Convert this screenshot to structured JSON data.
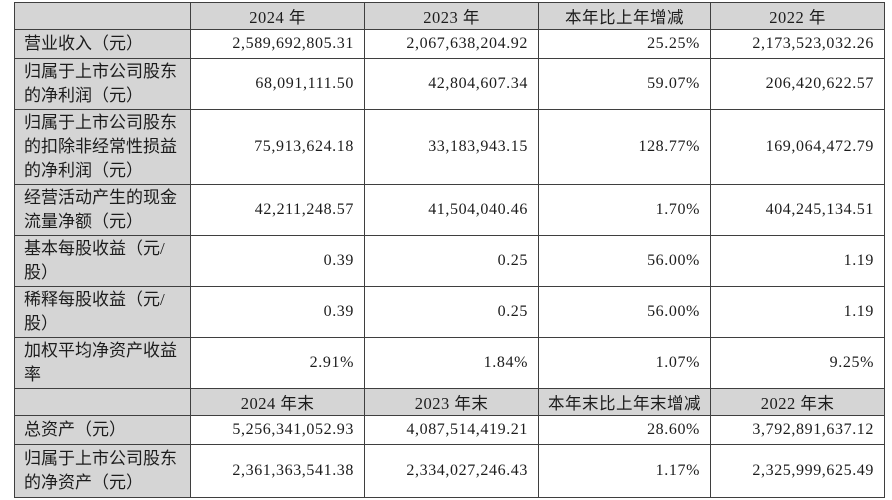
{
  "colors": {
    "header_bg": "#d5d5d5",
    "label_bg": "#d5d5d5",
    "cell_bg": "#ffffff",
    "border": "#3f3f3f",
    "text": "#1c1c1c"
  },
  "table": {
    "annual_header": {
      "empty": "",
      "cols": [
        "2024 年",
        "2023 年",
        "本年比上年增减",
        "2022 年"
      ]
    },
    "annual_rows": [
      {
        "label": "营业收入（元）",
        "values": [
          "2,589,692,805.31",
          "2,067,638,204.92",
          "25.25%",
          "2,173,523,032.26"
        ]
      },
      {
        "label": "归属于上市公司股东\n的净利润（元）",
        "values": [
          "68,091,111.50",
          "42,804,607.34",
          "59.07%",
          "206,420,622.57"
        ]
      },
      {
        "label": "归属于上市公司股东\n的扣除非经常性损益\n的净利润（元）",
        "values": [
          "75,913,624.18",
          "33,183,943.15",
          "128.77%",
          "169,064,472.79"
        ]
      },
      {
        "label": "经营活动产生的现金\n流量净额（元）",
        "values": [
          "42,211,248.57",
          "41,504,040.46",
          "1.70%",
          "404,245,134.51"
        ]
      },
      {
        "label": "基本每股收益（元/\n股）",
        "values": [
          "0.39",
          "0.25",
          "56.00%",
          "1.19"
        ]
      },
      {
        "label": "稀释每股收益（元/\n股）",
        "values": [
          "0.39",
          "0.25",
          "56.00%",
          "1.19"
        ]
      },
      {
        "label": "加权平均净资产收益\n率",
        "values": [
          "2.91%",
          "1.84%",
          "1.07%",
          "9.25%"
        ]
      }
    ],
    "period_header": {
      "empty": "",
      "cols": [
        "2024 年末",
        "2023 年末",
        "本年末比上年末增减",
        "2022 年末"
      ]
    },
    "period_rows": [
      {
        "label": "总资产（元）",
        "values": [
          "5,256,341,052.93",
          "4,087,514,419.21",
          "28.60%",
          "3,792,891,637.12"
        ]
      },
      {
        "label": "归属于上市公司股东\n的净资产（元）",
        "values": [
          "2,361,363,541.38",
          "2,334,027,246.43",
          "1.17%",
          "2,325,999,625.49"
        ]
      }
    ]
  }
}
